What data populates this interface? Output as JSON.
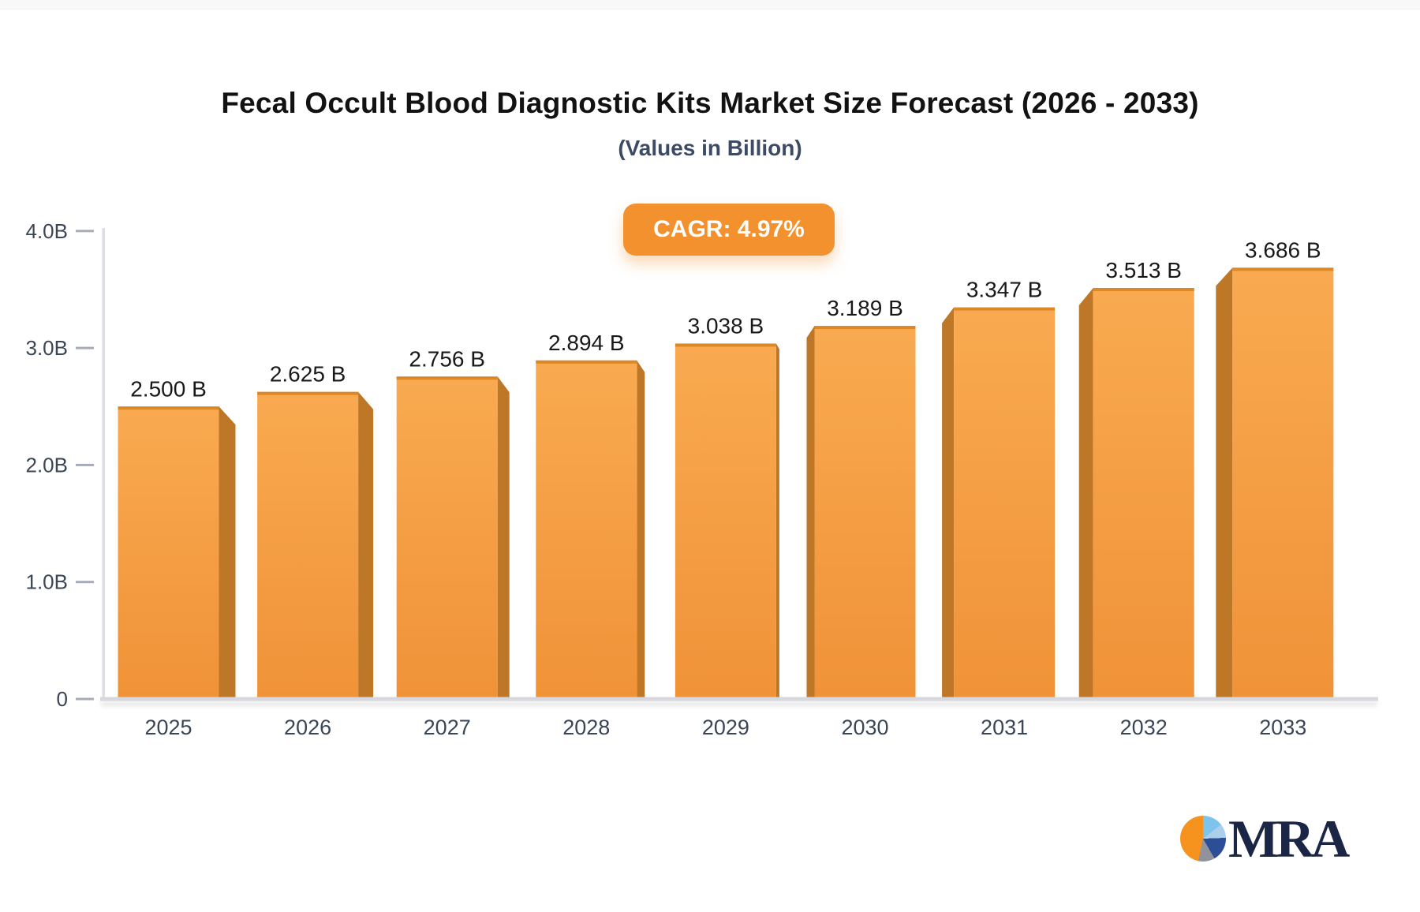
{
  "header": {
    "title": "Fecal Occult Blood Diagnostic Kits Market Size Forecast (2026 - 2033)",
    "subtitle": "(Values in Billion)"
  },
  "badge": {
    "label": "CAGR: 4.97%"
  },
  "logo": {
    "text": "MRA",
    "icon": "pie-chart-icon"
  },
  "chart_data": {
    "type": "bar",
    "title": "Fecal Occult Blood Diagnostic Kits Market Size Forecast (2026 - 2033)",
    "subtitle": "(Values in Billion)",
    "cagr_label": "CAGR: 4.97%",
    "categories": [
      "2025",
      "2026",
      "2027",
      "2028",
      "2029",
      "2030",
      "2031",
      "2032",
      "2033"
    ],
    "values": [
      2.5,
      2.625,
      2.756,
      2.894,
      3.038,
      3.189,
      3.347,
      3.513,
      3.686
    ],
    "value_labels": [
      "2.500 B",
      "2.625 B",
      "2.756 B",
      "2.894 B",
      "3.038 B",
      "3.189 B",
      "3.347 B",
      "3.513 B",
      "3.686 B"
    ],
    "xlabel": "",
    "ylabel": "",
    "ylim": [
      0,
      4.0
    ],
    "y_ticks": [
      0,
      1.0,
      2.0,
      3.0,
      4.0
    ],
    "y_tick_labels": [
      "0",
      "1.0B",
      "2.0B",
      "3.0B",
      "4.0B"
    ],
    "grid": false,
    "legend": "none",
    "colors": {
      "bar_face_top": "#f9aa50",
      "bar_face_bottom": "#f09238",
      "bar_top_edge": "#dc8826",
      "bar_side_panel": "#be7727",
      "badge_bg": "#f2912d",
      "axis_line": "#dcdee3",
      "baseline": "#d6d8dd",
      "tick_dash": "#a6abb5",
      "tick_text": "#3a4656",
      "value_text": "#191919",
      "title_text": "#121212",
      "subtitle_text": "#3d4a63"
    }
  }
}
